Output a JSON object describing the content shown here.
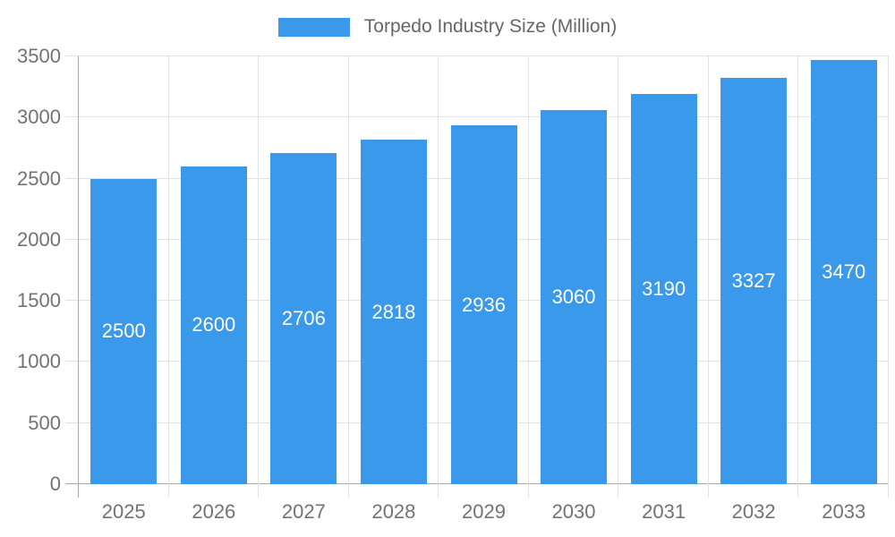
{
  "chart_data": {
    "type": "bar",
    "title": "Torpedo Industry Size (Million)",
    "categories": [
      "2025",
      "2026",
      "2027",
      "2028",
      "2029",
      "2030",
      "2031",
      "2032",
      "2033"
    ],
    "values": [
      2500,
      2600,
      2706,
      2818,
      2936,
      3060,
      3190,
      3327,
      3470
    ],
    "xlabel": "",
    "ylabel": "",
    "ylim": [
      0,
      3500
    ],
    "yticks": [
      0,
      500,
      1000,
      1500,
      2000,
      2500,
      3000,
      3500
    ],
    "grid": true,
    "legend_position": "top-center",
    "bar_value_labels": "inside-center",
    "colors": {
      "bar": "#3B99EC",
      "bar_label": "#FFFFFF",
      "gridline": "#E3E3E3",
      "axis_line": "#ABABAB",
      "axis_label": "#737373",
      "legend_text": "#666666",
      "background": "#FFFFFF"
    }
  }
}
